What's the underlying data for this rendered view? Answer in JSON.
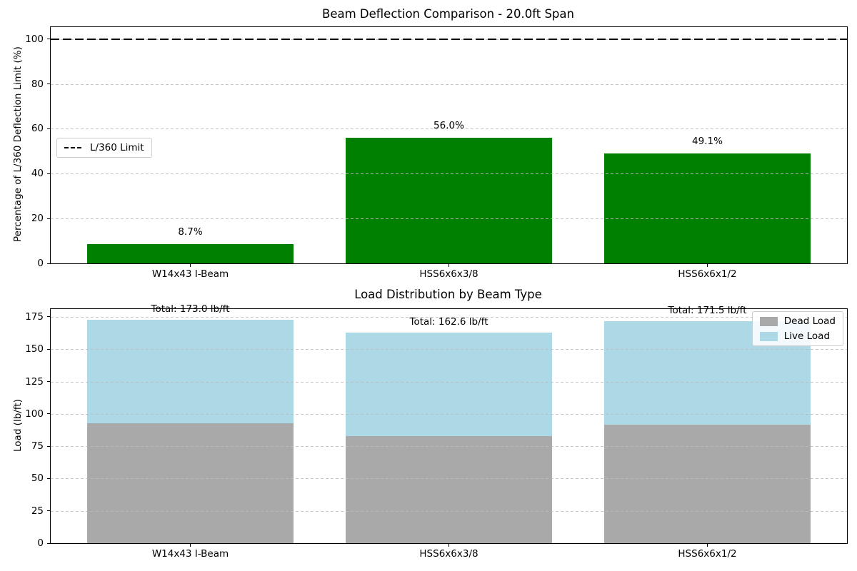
{
  "figure": {
    "background": "#ffffff",
    "grid_color": "#bcbcbc",
    "text_color": "#000000"
  },
  "chart_data": [
    {
      "type": "bar",
      "title": "Beam Deflection Comparison - 20.0ft Span",
      "ylabel": "Percentage of L/360 Deflection Limit (%)",
      "xlabel": "",
      "categories": [
        "W14x43 I-Beam",
        "HSS6x6x3/8",
        "HSS6x6x1/2"
      ],
      "values": [
        8.7,
        56.0,
        49.1
      ],
      "value_labels": [
        "8.7%",
        "56.0%",
        "49.1%"
      ],
      "bar_color": "#008000",
      "yticks": [
        0,
        20,
        40,
        60,
        80,
        100
      ],
      "ylim": [
        0,
        105.3
      ],
      "grid": "horizontal-dashed",
      "reference_line": {
        "value": 100,
        "color": "#000000",
        "style": "dashed"
      },
      "legend": {
        "position": "center-left",
        "entries": [
          {
            "label": "L/360 Limit",
            "marker": "dashed-line",
            "color": "#000000"
          }
        ]
      }
    },
    {
      "type": "stacked-bar",
      "title": "Load Distribution by Beam Type",
      "ylabel": "Load (lb/ft)",
      "xlabel": "",
      "categories": [
        "W14x43 I-Beam",
        "HSS6x6x3/8",
        "HSS6x6x1/2"
      ],
      "series": [
        {
          "name": "Dead Load",
          "color": "#a9a9a9",
          "values": [
            93.0,
            82.6,
            91.5
          ]
        },
        {
          "name": "Live Load",
          "color": "#add8e6",
          "values": [
            80.0,
            80.0,
            80.0
          ]
        }
      ],
      "totals": [
        173.0,
        162.6,
        171.5
      ],
      "total_labels": [
        "Total: 173.0 lb/ft",
        "Total: 162.6 lb/ft",
        "Total: 171.5 lb/ft"
      ],
      "yticks": [
        0,
        25,
        50,
        75,
        100,
        125,
        150,
        175
      ],
      "ylim": [
        0,
        181
      ],
      "grid": "horizontal-dashed",
      "legend": {
        "position": "top-right",
        "entries": [
          {
            "label": "Dead Load",
            "marker": "patch",
            "color": "#a9a9a9"
          },
          {
            "label": "Live Load",
            "marker": "patch",
            "color": "#add8e6"
          }
        ]
      }
    }
  ]
}
